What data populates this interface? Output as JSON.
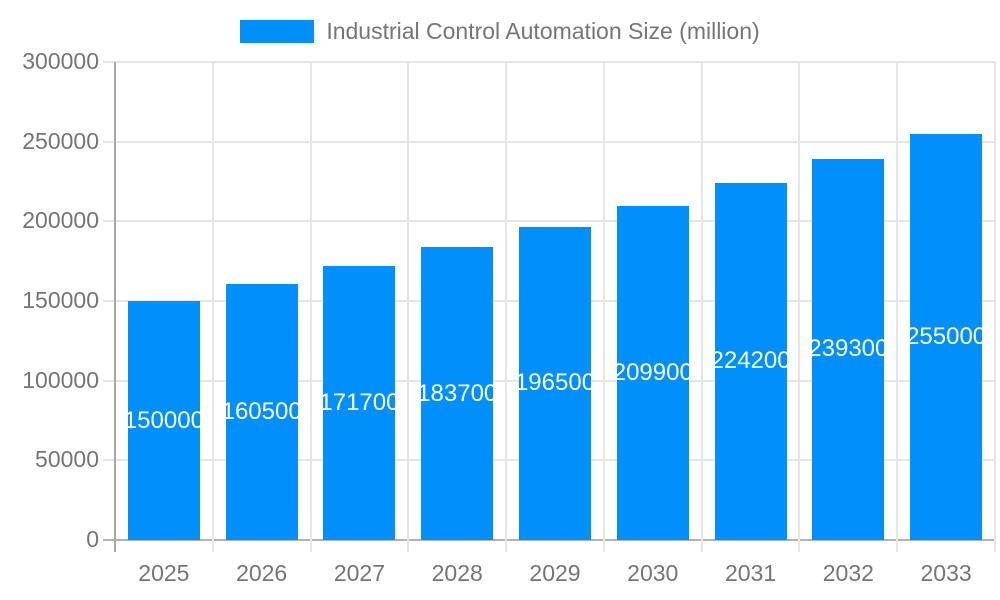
{
  "legend": {
    "label": "Industrial Control Automation Size (million)"
  },
  "chart_data": {
    "type": "bar",
    "title": "Industrial Control Automation Size (million)",
    "categories": [
      "2025",
      "2026",
      "2027",
      "2028",
      "2029",
      "2030",
      "2031",
      "2032",
      "2033"
    ],
    "values": [
      150000,
      160500,
      171700,
      183700,
      196500,
      209900,
      224200,
      239300,
      255000
    ],
    "bar_labels": [
      "150000",
      "160500",
      "171700",
      "183700",
      "196500",
      "209900",
      "224200",
      "239300",
      "255000"
    ],
    "xlabel": "",
    "ylabel": "",
    "ylim": [
      0,
      300000
    ],
    "yticks": [
      0,
      50000,
      100000,
      150000,
      200000,
      250000,
      300000
    ],
    "ytick_labels": [
      "0",
      "50000",
      "100000",
      "150000",
      "200000",
      "250000",
      "300000"
    ],
    "grid": true,
    "legend_position": "top",
    "colors": {
      "bar": "#008FFB",
      "axis_text": "#757575",
      "grid_line": "#e6e6e6",
      "axis_line": "#a9a9a9",
      "baseline": "#b3b3b3",
      "bar_label_text": "#ffffff"
    }
  }
}
